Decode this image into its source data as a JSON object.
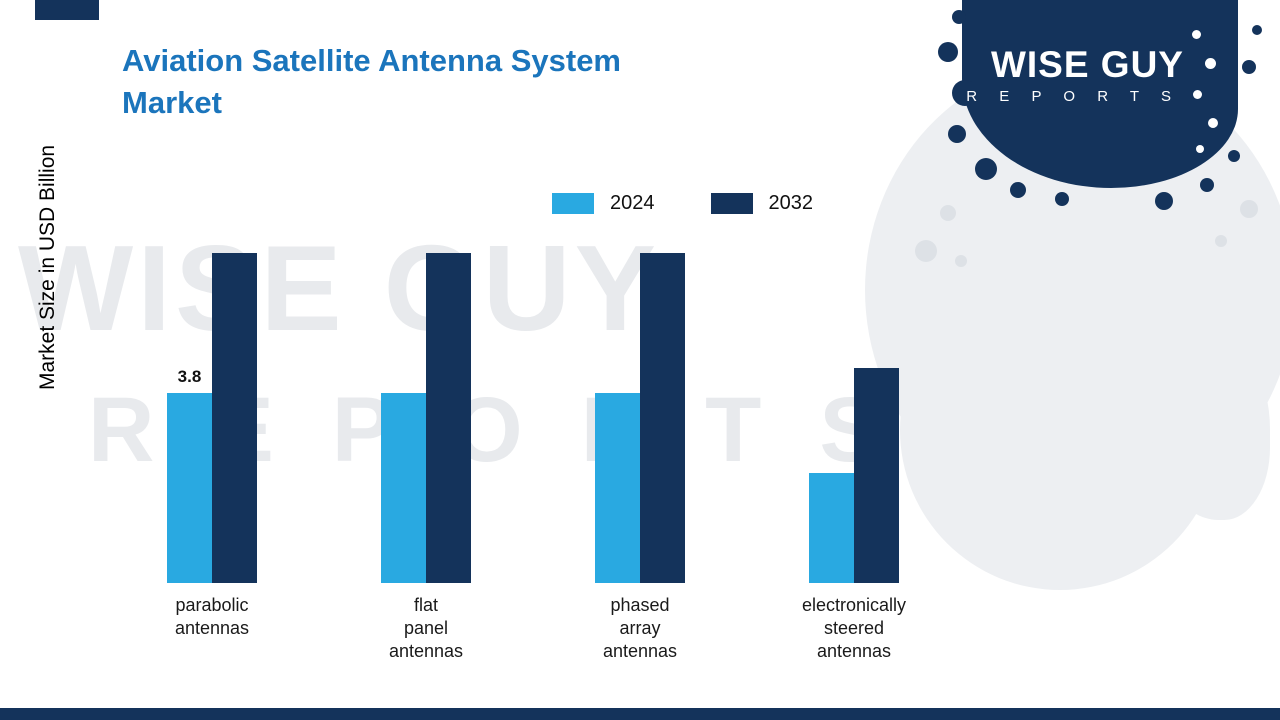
{
  "page": {
    "title_line1": "Aviation Satellite Antenna System",
    "title_line2": "Market",
    "title_color": "#1B75BC"
  },
  "logo": {
    "name_line": "WISE GUY",
    "reports_line": "R E P O R T S",
    "bg_color": "#14335B"
  },
  "watermark": {
    "line1": "WISE GUY",
    "line2": "REPORTS"
  },
  "chart_data": {
    "type": "bar",
    "title": "Aviation Satellite Antenna System Market",
    "xlabel": "",
    "ylabel": "Market Size in USD Billion",
    "categories": [
      [
        "parabolic",
        "antennas"
      ],
      [
        "flat",
        "panel",
        "antennas"
      ],
      [
        "phased",
        "array",
        "antennas"
      ],
      [
        "electronically",
        "steered",
        "antennas"
      ]
    ],
    "series": [
      {
        "name": "2024",
        "color": "#29A9E1",
        "values": [
          3.8,
          3.8,
          3.8,
          2.2
        ]
      },
      {
        "name": "2032",
        "color": "#14335B",
        "values": [
          6.6,
          6.6,
          6.6,
          4.3
        ]
      }
    ],
    "value_labels": [
      "3.8",
      "",
      "",
      ""
    ],
    "ylim": [
      0,
      6.6
    ],
    "grid": false,
    "legend_position": "top"
  }
}
